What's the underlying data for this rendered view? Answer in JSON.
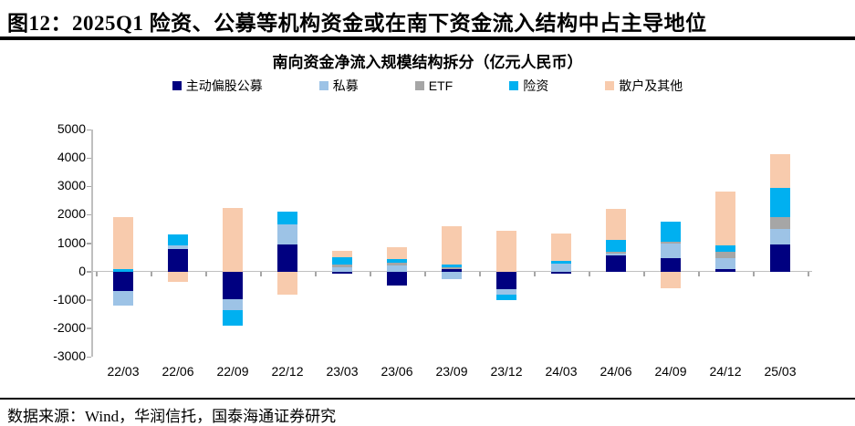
{
  "page": {
    "title": "图12：2025Q1 险资、公募等机构资金或在南下资金流入结构中占主导地位",
    "source": "数据来源：Wind，华润信托，国泰海通证券研究"
  },
  "chart_data": {
    "type": "bar",
    "stacked": true,
    "title": "南向资金净流入规模结构拆分（亿元人民币）",
    "categories": [
      "22/03",
      "22/06",
      "22/09",
      "22/12",
      "23/03",
      "23/06",
      "23/09",
      "23/12",
      "24/03",
      "24/06",
      "24/09",
      "24/12",
      "25/03"
    ],
    "series": [
      {
        "name": "主动偏股公募",
        "color": "#000080",
        "values": [
          -700,
          800,
          -970,
          950,
          -80,
          -500,
          70,
          -630,
          -90,
          560,
          480,
          90,
          950
        ]
      },
      {
        "name": "私募",
        "color": "#9DC3E6",
        "values": [
          -500,
          110,
          -390,
          700,
          155,
          200,
          -280,
          -200,
          290,
          60,
          490,
          370,
          550
        ]
      },
      {
        "name": "ETF",
        "color": "#A6A6A6",
        "values": [
          0,
          0,
          0,
          0,
          75,
          110,
          90,
          0,
          0,
          70,
          90,
          250,
          400
        ]
      },
      {
        "name": "险资",
        "color": "#00B0F0",
        "values": [
          70,
          380,
          -560,
          460,
          285,
          140,
          90,
          -180,
          90,
          430,
          710,
          200,
          1030
        ]
      },
      {
        "name": "散户及其他",
        "color": "#F8CBAD",
        "values": [
          1850,
          -360,
          2230,
          -800,
          200,
          410,
          1360,
          1440,
          960,
          1100,
          -600,
          1920,
          1210
        ]
      }
    ],
    "ylabel": "",
    "xlabel": "",
    "ylim": [
      -3000,
      5000
    ],
    "ytick_interval": 1000,
    "legend_position": "top",
    "grid": false,
    "axis_color": "#BFBFBF"
  }
}
